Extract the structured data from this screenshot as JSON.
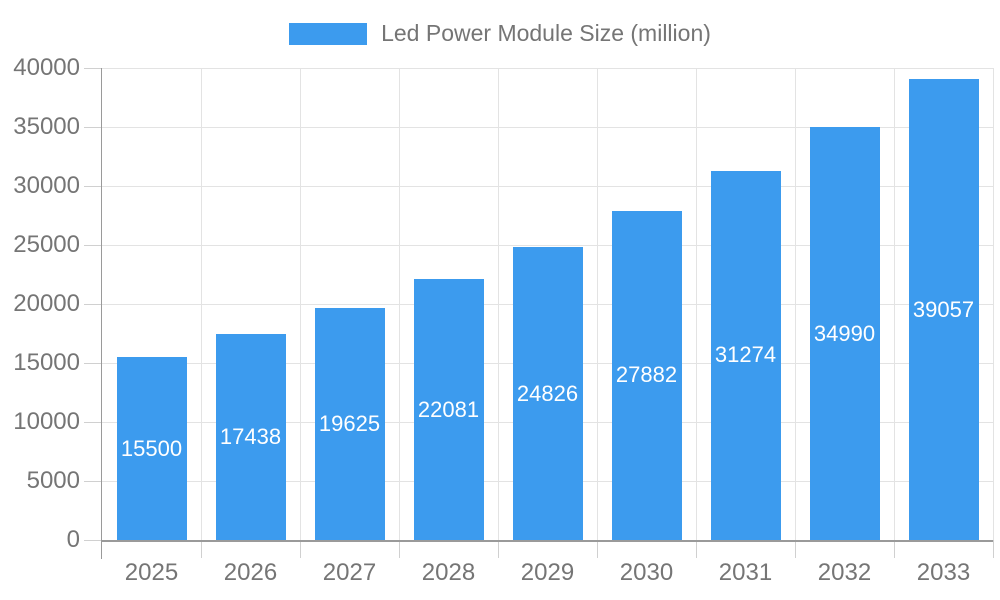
{
  "chart_data": {
    "type": "bar",
    "title": "Led Power Module Size (million)",
    "categories": [
      "2025",
      "2026",
      "2027",
      "2028",
      "2029",
      "2030",
      "2031",
      "2032",
      "2033"
    ],
    "values": [
      15500,
      17438,
      19625,
      22081,
      24826,
      27882,
      31274,
      34990,
      39057
    ],
    "xlabel": "",
    "ylabel": "",
    "ylim": [
      0,
      40000
    ],
    "ytick_step": 5000,
    "ytick_labels": [
      "0",
      "5000",
      "10000",
      "15000",
      "20000",
      "25000",
      "30000",
      "35000",
      "40000"
    ],
    "grid": true,
    "legend_position": "top",
    "value_label_position": "inside-center",
    "colors": {
      "bar": "#3C9BEE",
      "value_label": "#FFFFFF",
      "axis": "#9A9A9A",
      "grid": "#E3E3E3",
      "tick": "#D0D0D0",
      "text": "#757575",
      "background": "#FFFFFF"
    }
  }
}
